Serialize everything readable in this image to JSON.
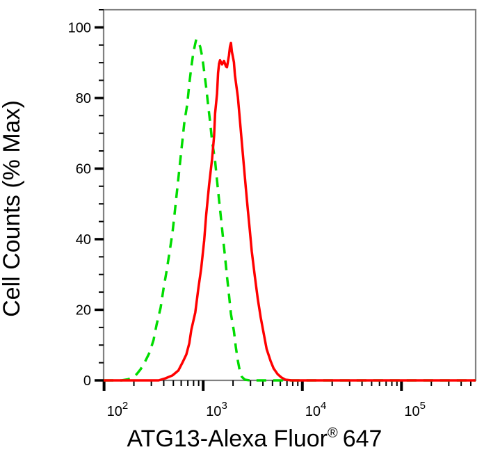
{
  "figure": {
    "y_axis_title": "Cell Counts (% Max)",
    "x_axis_title": {
      "pre": "ATG13-Alexa Fluor",
      "reg": "®",
      "post": "647"
    }
  },
  "chart_data": {
    "type": "line",
    "subtype": "flow-cytometry-histogram-overlay",
    "title": "",
    "xlabel": "ATG13-Alexa Fluor® 647",
    "ylabel": "Cell Counts (% Max)",
    "x_scale": "log",
    "x_range": [
      99,
      560000
    ],
    "y_range": [
      0,
      105
    ],
    "grid": false,
    "legend": null,
    "frame_color": "#808080",
    "tick_color": "#000000",
    "x_major_ticks": [
      {
        "value": 100,
        "base": "10",
        "exp": "2"
      },
      {
        "value": 1000,
        "base": "10",
        "exp": "3"
      },
      {
        "value": 10000,
        "base": "10",
        "exp": "4"
      },
      {
        "value": 100000,
        "base": "10",
        "exp": "5"
      }
    ],
    "x_minor_multipliers": [
      2,
      3,
      4,
      5,
      6,
      7,
      8,
      9
    ],
    "y_major_ticks": [
      {
        "value": 0,
        "label": "0"
      },
      {
        "value": 20,
        "label": "20"
      },
      {
        "value": 40,
        "label": "40"
      },
      {
        "value": 60,
        "label": "60"
      },
      {
        "value": 80,
        "label": "80"
      },
      {
        "value": 100,
        "label": "100"
      }
    ],
    "y_minor_step": 5,
    "series": [
      {
        "name": "green-dashed-histogram",
        "color": "#00DC00",
        "line_style": "dashed",
        "points": [
          [
            99,
            0
          ],
          [
            150,
            0
          ],
          [
            174,
            0.3
          ],
          [
            195,
            0.8
          ],
          [
            214,
            1.8
          ],
          [
            234,
            3.2
          ],
          [
            257,
            5.1
          ],
          [
            288,
            7.9
          ],
          [
            316,
            11.5
          ],
          [
            339,
            15.8
          ],
          [
            372,
            20.6
          ],
          [
            398,
            25.9
          ],
          [
            427,
            30.9
          ],
          [
            457,
            36.2
          ],
          [
            490,
            41.8
          ],
          [
            513,
            46.9
          ],
          [
            537,
            52.1
          ],
          [
            562,
            57.2
          ],
          [
            589,
            62.6
          ],
          [
            617,
            67.9
          ],
          [
            646,
            73.1
          ],
          [
            692,
            78.4
          ],
          [
            724,
            84
          ],
          [
            759,
            88.7
          ],
          [
            794,
            92.7
          ],
          [
            832,
            95.4
          ],
          [
            851,
            96.6
          ],
          [
            891,
            96
          ],
          [
            933,
            94.5
          ],
          [
            977,
            91.7
          ],
          [
            1023,
            87.5
          ],
          [
            1072,
            83
          ],
          [
            1122,
            78
          ],
          [
            1175,
            73.1
          ],
          [
            1230,
            67.7
          ],
          [
            1318,
            62.2
          ],
          [
            1380,
            56.6
          ],
          [
            1445,
            51.1
          ],
          [
            1514,
            45.7
          ],
          [
            1585,
            40.4
          ],
          [
            1660,
            35
          ],
          [
            1738,
            29.5
          ],
          [
            1820,
            24.2
          ],
          [
            1905,
            18.8
          ],
          [
            2042,
            13.9
          ],
          [
            2138,
            9.3
          ],
          [
            2239,
            5.5
          ],
          [
            2344,
            2.6
          ],
          [
            2455,
            1
          ],
          [
            2630,
            0.2
          ],
          [
            2950,
            0
          ],
          [
            560000,
            0
          ]
        ]
      },
      {
        "name": "red-solid-histogram",
        "color": "#FF0000",
        "line_style": "solid",
        "points": [
          [
            99,
            0
          ],
          [
            355,
            0
          ],
          [
            417,
            0.6
          ],
          [
            490,
            1.4
          ],
          [
            562,
            2.8
          ],
          [
            617,
            5
          ],
          [
            676,
            7.3
          ],
          [
            724,
            10.5
          ],
          [
            759,
            14.3
          ],
          [
            832,
            19.2
          ],
          [
            891,
            25.7
          ],
          [
            955,
            31.7
          ],
          [
            1023,
            39.6
          ],
          [
            1072,
            46.9
          ],
          [
            1148,
            55.4
          ],
          [
            1230,
            62.8
          ],
          [
            1288,
            69.3
          ],
          [
            1318,
            75.6
          ],
          [
            1380,
            81.2
          ],
          [
            1413,
            87.1
          ],
          [
            1445,
            89.7
          ],
          [
            1479,
            90.7
          ],
          [
            1549,
            89.5
          ],
          [
            1622,
            90.5
          ],
          [
            1698,
            88.9
          ],
          [
            1738,
            88.7
          ],
          [
            1820,
            92.1
          ],
          [
            1862,
            94.5
          ],
          [
            1905,
            95.6
          ],
          [
            1950,
            93.1
          ],
          [
            2042,
            90.1
          ],
          [
            2089,
            86.5
          ],
          [
            2239,
            80.2
          ],
          [
            2344,
            73.9
          ],
          [
            2455,
            67.3
          ],
          [
            2570,
            61
          ],
          [
            2692,
            54.5
          ],
          [
            2818,
            48.5
          ],
          [
            2951,
            42.6
          ],
          [
            3090,
            36.6
          ],
          [
            3311,
            29.7
          ],
          [
            3548,
            23.2
          ],
          [
            3802,
            17.8
          ],
          [
            4074,
            13.3
          ],
          [
            4365,
            8.9
          ],
          [
            4786,
            5.5
          ],
          [
            5129,
            3.4
          ],
          [
            5623,
            1.8
          ],
          [
            6166,
            0.8
          ],
          [
            6761,
            0.2
          ],
          [
            7762,
            0
          ],
          [
            560000,
            0
          ]
        ]
      }
    ]
  }
}
